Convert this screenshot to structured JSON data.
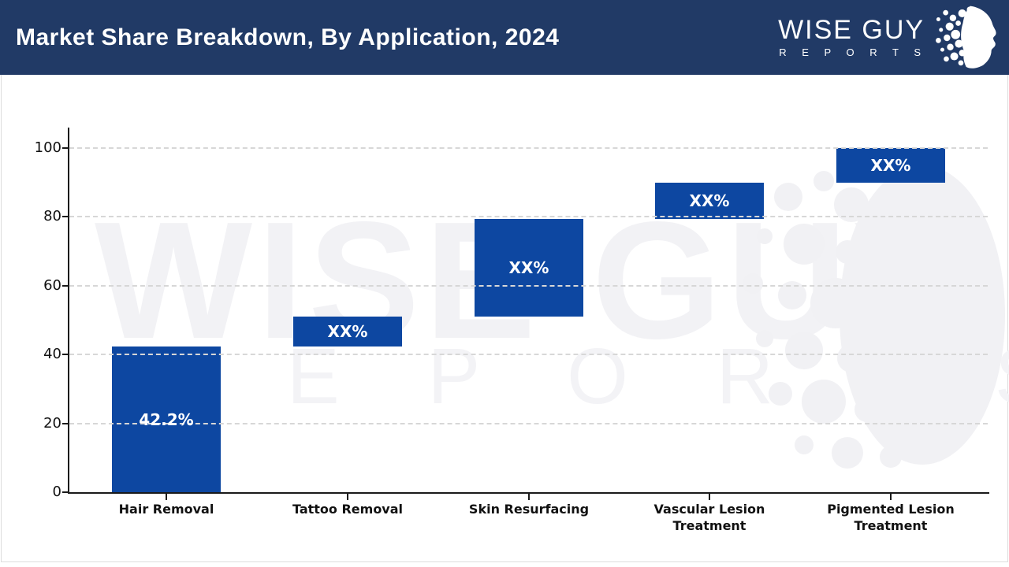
{
  "header": {
    "title": "Market Share Breakdown, By Application, 2024",
    "logo": {
      "line1": "WISE GUY",
      "line2": "R E P O R T S"
    }
  },
  "watermark": {
    "line1": "WISE GUY",
    "line2": "R E P O R T S"
  },
  "colors": {
    "header_bg": "#213a66",
    "bar": "#0d47a1",
    "grid": "#d7d7d7",
    "axis": "#1a1a1a",
    "bar_label": "#ffffff",
    "watermark": "#f2f2f5"
  },
  "chart_data": {
    "type": "bar",
    "subtype": "waterfall",
    "title": "Market Share Breakdown, By Application, 2024",
    "xlabel": "",
    "ylabel": "",
    "categories": [
      "Hair Removal",
      "Tattoo Removal",
      "Skin Resurfacing",
      "Vascular Lesion Treatment",
      "Pigmented Lesion Treatment"
    ],
    "segments": [
      {
        "category": "Hair Removal",
        "start": 0,
        "end": 42.2,
        "label": "42.2%"
      },
      {
        "category": "Tattoo Removal",
        "start": 42.2,
        "end": 51.0,
        "label": "XX%"
      },
      {
        "category": "Skin Resurfacing",
        "start": 51.0,
        "end": 79.3,
        "label": "XX%"
      },
      {
        "category": "Vascular Lesion Treatment",
        "start": 79.3,
        "end": 89.8,
        "label": "XX%"
      },
      {
        "category": "Pigmented Lesion Treatment",
        "start": 89.8,
        "end": 100,
        "label": "XX%"
      }
    ],
    "yticks": [
      0,
      20,
      40,
      60,
      80,
      100
    ],
    "ylim": [
      0,
      105
    ],
    "grid": "horizontal-dashed",
    "legend": "none"
  }
}
